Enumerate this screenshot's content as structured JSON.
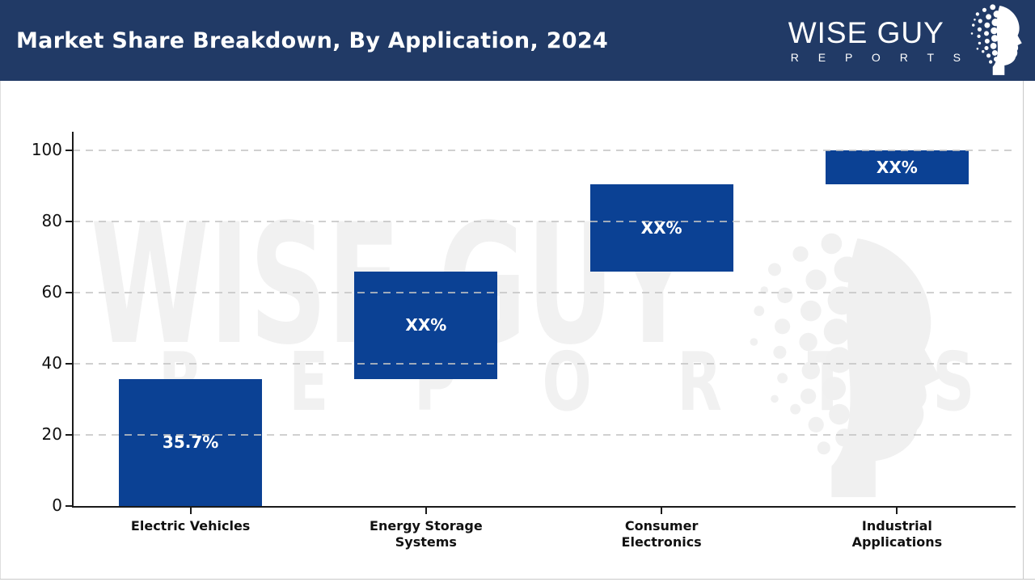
{
  "header": {
    "title": "Market Share Breakdown, By Application, 2024",
    "logo": {
      "line1": "WISE GUY",
      "line2": "R E P O R T S"
    }
  },
  "watermark": {
    "line1": "WISE GUY",
    "line2": "R E P O R T S"
  },
  "colors": {
    "header_bg": "#213A66",
    "bar": "#0B4194",
    "grid": "#c4c4c4",
    "axis": "#1a1a1a",
    "watermark": "#f1f1f1",
    "frame_border": "#c9c9c9",
    "bar_label": "#ffffff"
  },
  "chart_data": {
    "type": "bar",
    "variant": "waterfall",
    "title": "Market Share Breakdown, By Application, 2024",
    "categories": [
      "Electric Vehicles",
      "Energy Storage Systems",
      "Consumer Electronics",
      "Industrial Applications"
    ],
    "category_lines": [
      [
        "Electric Vehicles"
      ],
      [
        "Energy Storage",
        "Systems"
      ],
      [
        "Consumer",
        "Electronics"
      ],
      [
        "Industrial",
        "Applications"
      ]
    ],
    "series": [
      {
        "name": "Market Share (%)",
        "segments": [
          {
            "category": "Electric Vehicles",
            "start": 0,
            "end": 35.7,
            "label": "35.7%"
          },
          {
            "category": "Energy Storage Systems",
            "start": 35.7,
            "end": 66,
            "label": "XX%"
          },
          {
            "category": "Consumer Electronics",
            "start": 66,
            "end": 90.5,
            "label": "XX%"
          },
          {
            "category": "Industrial Applications",
            "start": 90.5,
            "end": 100,
            "label": "XX%"
          }
        ]
      }
    ],
    "yticks": [
      0,
      20,
      40,
      60,
      80,
      100
    ],
    "ylim": [
      0,
      104.8
    ],
    "xlabel": "",
    "ylabel": "",
    "grid": "horizontal-dashed-over-bars",
    "legend": "none",
    "bar_color": "#0B4194",
    "label_color": "#ffffff"
  }
}
